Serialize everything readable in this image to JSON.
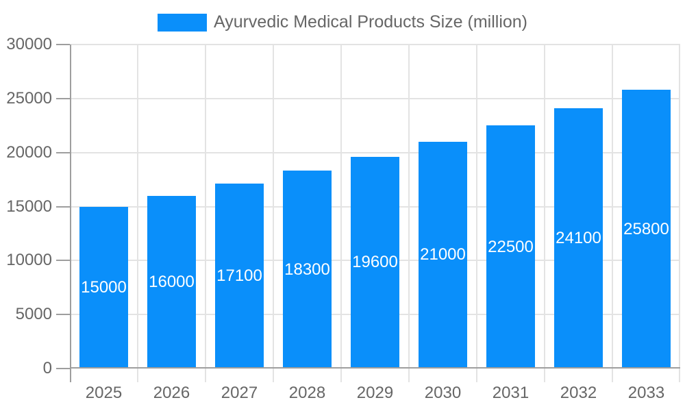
{
  "chart_data": {
    "type": "bar",
    "title": "Ayurvedic Medical Products Size (million)",
    "series_name": "Ayurvedic Medical Products Size (million)",
    "categories": [
      "2025",
      "2026",
      "2027",
      "2028",
      "2029",
      "2030",
      "2031",
      "2032",
      "2033"
    ],
    "values": [
      15000,
      16000,
      17100,
      18300,
      19600,
      21000,
      22500,
      24100,
      25800
    ],
    "yticks": [
      0,
      5000,
      10000,
      15000,
      20000,
      25000,
      30000
    ],
    "ylim": [
      0,
      30000
    ],
    "xlabel": "",
    "ylabel": "",
    "grid": true,
    "legend_position": "top",
    "bar_color": "#0a8ffa",
    "value_label_color": "#ffffff",
    "axis_text_color": "#666666",
    "grid_color": "#e3e3e3",
    "axis_line_color": "#9e9e9e",
    "background_color": "#ffffff"
  }
}
